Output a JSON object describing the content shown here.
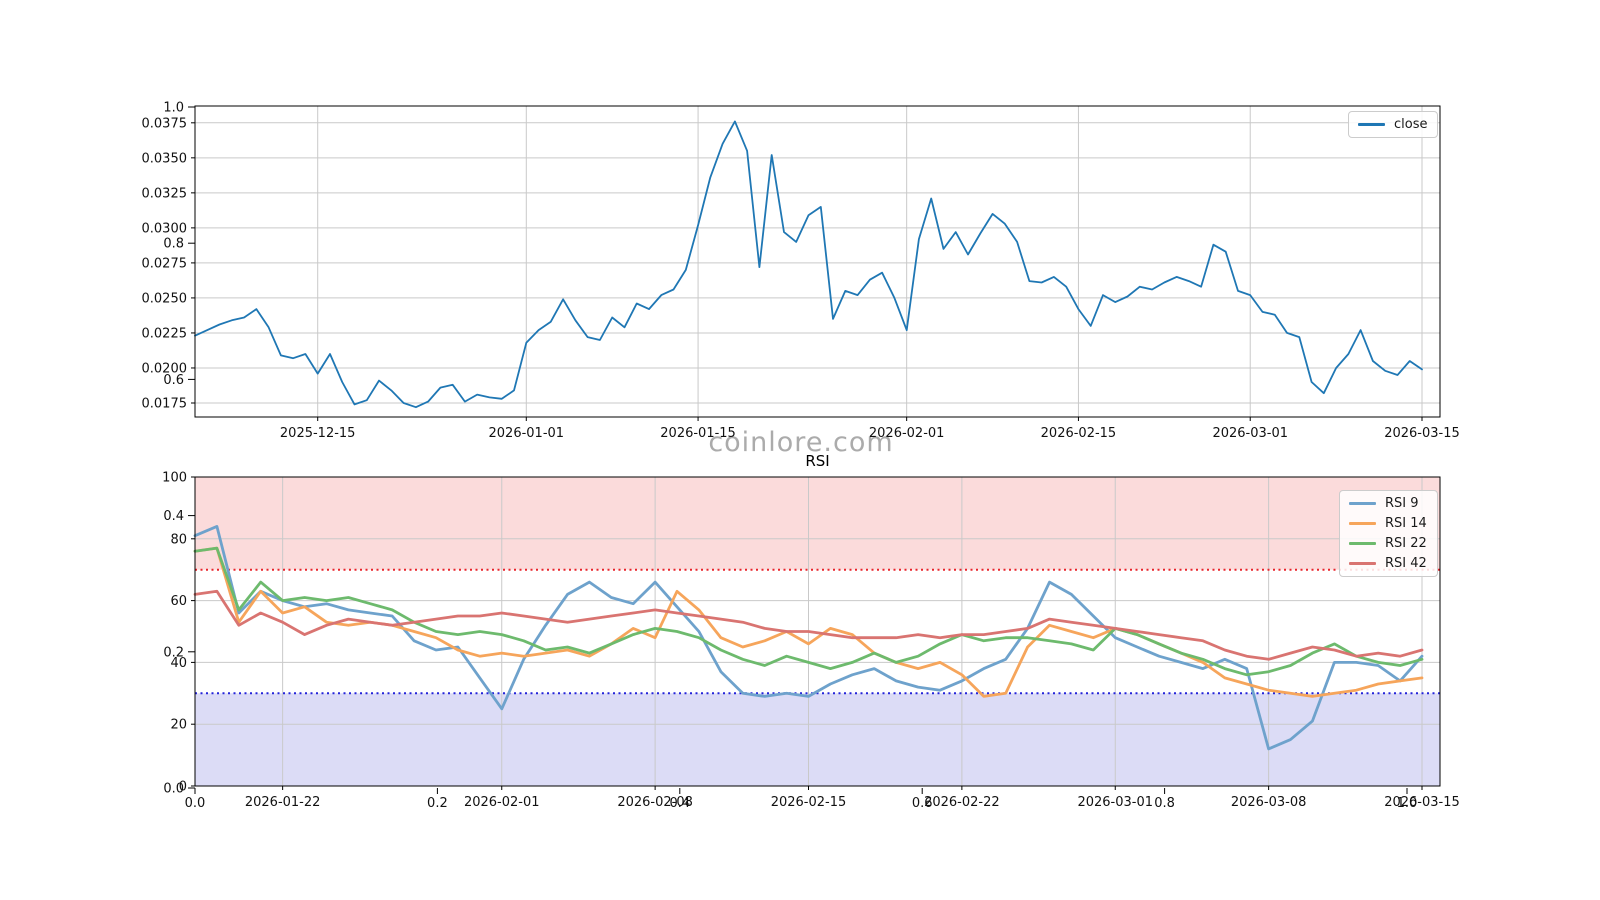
{
  "watermark": "coinlore.com",
  "colors": {
    "grid": "#c9c9c9",
    "spine": "#000000",
    "close_line": "#1f77b4",
    "rsi9": "#6ea2cc",
    "rsi14": "#f6a55b",
    "rsi22": "#6dba6d",
    "rsi42": "#d97471",
    "overbought_band": "#fbdbdb",
    "oversold_band": "#dcdcf6",
    "overbought_dotted": "#e8232a",
    "oversold_dotted": "#2424d9",
    "watermark_gray": "#787878"
  },
  "stray_axis": {
    "x_labels": [
      "0.0",
      "0.2",
      "0.4",
      "0.6",
      "0.8",
      "1.0"
    ],
    "y_labels": [
      "1.0",
      "0.8",
      "0.6",
      "0.4",
      "0.2",
      "0.0"
    ]
  },
  "chart_data": [
    {
      "name": "price-chart",
      "type": "line",
      "title": "",
      "x_start": "2025-12-05",
      "x_end": "2026-03-15",
      "x_ticks": [
        "2025-12-15",
        "2026-01-01",
        "2026-01-15",
        "2026-02-01",
        "2026-02-15",
        "2026-03-01",
        "2026-03-15"
      ],
      "y_ticks": [
        0.0175,
        0.02,
        0.0225,
        0.025,
        0.0275,
        0.03,
        0.0325,
        0.035,
        0.0375
      ],
      "ylim": [
        0.0165,
        0.0387
      ],
      "grid": true,
      "legend_position": "upper-right",
      "series": [
        {
          "name": "close",
          "color": "#1f77b4",
          "width": 1.8,
          "values": [
            0.0223,
            0.0227,
            0.0231,
            0.0234,
            0.0236,
            0.0242,
            0.0229,
            0.0209,
            0.0207,
            0.021,
            0.0196,
            0.021,
            0.019,
            0.0174,
            0.0177,
            0.0191,
            0.0184,
            0.0175,
            0.0172,
            0.0176,
            0.0186,
            0.0188,
            0.0176,
            0.0181,
            0.0179,
            0.0178,
            0.0184,
            0.0218,
            0.0227,
            0.0233,
            0.0249,
            0.0234,
            0.0222,
            0.022,
            0.0236,
            0.0229,
            0.0246,
            0.0242,
            0.0252,
            0.0256,
            0.027,
            0.0302,
            0.0336,
            0.036,
            0.0376,
            0.0355,
            0.0272,
            0.0352,
            0.0297,
            0.029,
            0.0309,
            0.0315,
            0.0235,
            0.0255,
            0.0252,
            0.0263,
            0.0268,
            0.025,
            0.0227,
            0.0292,
            0.0321,
            0.0285,
            0.0297,
            0.0281,
            0.0296,
            0.031,
            0.0303,
            0.029,
            0.0262,
            0.0261,
            0.0265,
            0.0258,
            0.0242,
            0.023,
            0.0252,
            0.0247,
            0.0251,
            0.0258,
            0.0256,
            0.0261,
            0.0265,
            0.0262,
            0.0258,
            0.0288,
            0.0283,
            0.0255,
            0.0252,
            0.024,
            0.0238,
            0.0225,
            0.0222,
            0.019,
            0.0182,
            0.02,
            0.021,
            0.0227,
            0.0205,
            0.0198,
            0.0195,
            0.0205,
            0.0199
          ]
        }
      ]
    },
    {
      "name": "rsi-chart",
      "type": "line",
      "title": "RSI",
      "x_start": "2026-01-18",
      "x_end": "2026-03-15",
      "x_ticks": [
        "2026-01-22",
        "2026-02-01",
        "2026-02-08",
        "2026-02-15",
        "2026-02-22",
        "2026-03-01",
        "2026-03-08",
        "2026-03-15"
      ],
      "y_ticks": [
        0,
        20,
        40,
        60,
        80,
        100
      ],
      "ylim": [
        0,
        100
      ],
      "grid": true,
      "legend_position": "upper-right",
      "overbought_level": 70,
      "oversold_level": 30,
      "bands": [
        {
          "name": "overbought-band",
          "from": 100,
          "to": 70,
          "color": "#fbdbdb"
        },
        {
          "name": "oversold-band",
          "from": 30,
          "to": 0,
          "color": "#dcdcf6"
        }
      ],
      "thresholds": [
        {
          "name": "overbought-line",
          "value": 70,
          "color": "#e8232a"
        },
        {
          "name": "oversold-line",
          "value": 30,
          "color": "#2424d9"
        }
      ],
      "series": [
        {
          "name": "RSI 9",
          "color": "#6ea2cc",
          "width": 2.8,
          "values": [
            81,
            84,
            56,
            63,
            60,
            58,
            59,
            57,
            56,
            55,
            47,
            44,
            45,
            35,
            25,
            41,
            52,
            62,
            66,
            61,
            59,
            66,
            58,
            50,
            37,
            30,
            29,
            30,
            29,
            33,
            36,
            38,
            34,
            32,
            31,
            34,
            38,
            41,
            51,
            66,
            62,
            55,
            48,
            45,
            42,
            40,
            38,
            41,
            38,
            12,
            15,
            21,
            40,
            40,
            39,
            34,
            42
          ]
        },
        {
          "name": "RSI 14",
          "color": "#f6a55b",
          "width": 2.8,
          "values": [
            76,
            77,
            53,
            63,
            56,
            58,
            53,
            52,
            53,
            52,
            50,
            48,
            44,
            42,
            43,
            42,
            43,
            44,
            42,
            46,
            51,
            48,
            63,
            57,
            48,
            45,
            47,
            50,
            46,
            51,
            49,
            43,
            40,
            38,
            40,
            36,
            29,
            30,
            45,
            52,
            50,
            48,
            51,
            49,
            46,
            43,
            40,
            35,
            33,
            31,
            30,
            29,
            30,
            31,
            33,
            34,
            35
          ]
        },
        {
          "name": "RSI 22",
          "color": "#6dba6d",
          "width": 2.8,
          "values": [
            76,
            77,
            57,
            66,
            60,
            61,
            60,
            61,
            59,
            57,
            53,
            50,
            49,
            50,
            49,
            47,
            44,
            45,
            43,
            46,
            49,
            51,
            50,
            48,
            44,
            41,
            39,
            42,
            40,
            38,
            40,
            43,
            40,
            42,
            46,
            49,
            47,
            48,
            48,
            47,
            46,
            44,
            51,
            49,
            46,
            43,
            41,
            38,
            36,
            37,
            39,
            43,
            46,
            42,
            40,
            39,
            41
          ]
        },
        {
          "name": "RSI 42",
          "color": "#d97471",
          "width": 2.8,
          "values": [
            62,
            63,
            52,
            56,
            53,
            49,
            52,
            54,
            53,
            52,
            53,
            54,
            55,
            55,
            56,
            55,
            54,
            53,
            54,
            55,
            56,
            57,
            56,
            55,
            54,
            53,
            51,
            50,
            50,
            49,
            48,
            48,
            48,
            49,
            48,
            49,
            49,
            50,
            51,
            54,
            53,
            52,
            51,
            50,
            49,
            48,
            47,
            44,
            42,
            41,
            43,
            45,
            44,
            42,
            43,
            42,
            44
          ]
        }
      ]
    }
  ]
}
